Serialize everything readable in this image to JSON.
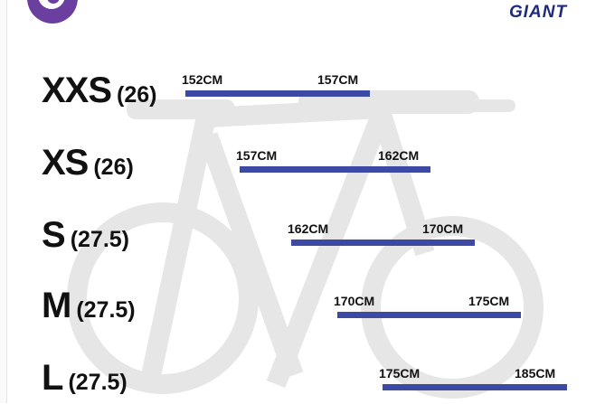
{
  "brand": "GIANT",
  "colors": {
    "bar": "#3d4aa3",
    "logo": "#6b3fa0",
    "brand": "#1f2a7a",
    "background_bike": "#e6e6e6"
  },
  "chart_data": {
    "type": "range-bar",
    "unit": "CM",
    "rows": [
      {
        "size": "XXS",
        "wheel": "(26)",
        "min": 152,
        "max": 157,
        "min_label": "152CM",
        "max_label": "157CM"
      },
      {
        "size": "XS",
        "wheel": "(26)",
        "min": 157,
        "max": 162,
        "min_label": "157CM",
        "max_label": "162CM"
      },
      {
        "size": "S",
        "wheel": "(27.5)",
        "min": 162,
        "max": 170,
        "min_label": "162CM",
        "max_label": "170CM"
      },
      {
        "size": "M",
        "wheel": "(27.5)",
        "min": 170,
        "max": 175,
        "min_label": "170CM",
        "max_label": "175CM"
      },
      {
        "size": "L",
        "wheel": "(27.5)",
        "min": 175,
        "max": 185,
        "min_label": "175CM",
        "max_label": "185CM"
      }
    ]
  }
}
